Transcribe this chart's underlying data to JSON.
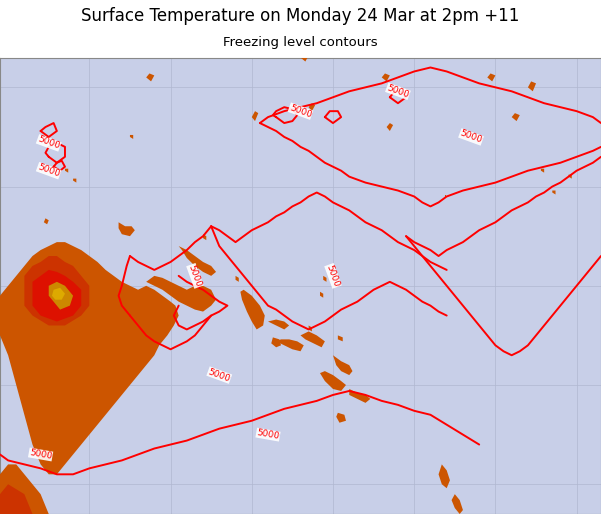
{
  "title": "Surface Temperature on Monday 24 Mar at 2pm +11",
  "subtitle": "Freezing level contours",
  "ocean_color": "#c8cfe8",
  "land_low": "#cc5500",
  "land_mid": "#cc3300",
  "land_high": "#dd1100",
  "land_vhigh": "#cc8800",
  "land_peak": "#ddaa00",
  "contour_color": "#ff0000",
  "grid_color": "#b0b8d0",
  "title_fontsize": 12,
  "subtitle_fontsize": 9.5,
  "contour_label_fontsize": 6.5,
  "lon_min": 139.5,
  "lon_max": 176.5,
  "lat_min": -16.5,
  "lat_max": 6.5,
  "grid_lons": [
    145,
    150,
    155,
    160,
    165,
    170,
    175
  ],
  "grid_lats": [
    -15,
    -10,
    -5,
    0,
    5
  ]
}
